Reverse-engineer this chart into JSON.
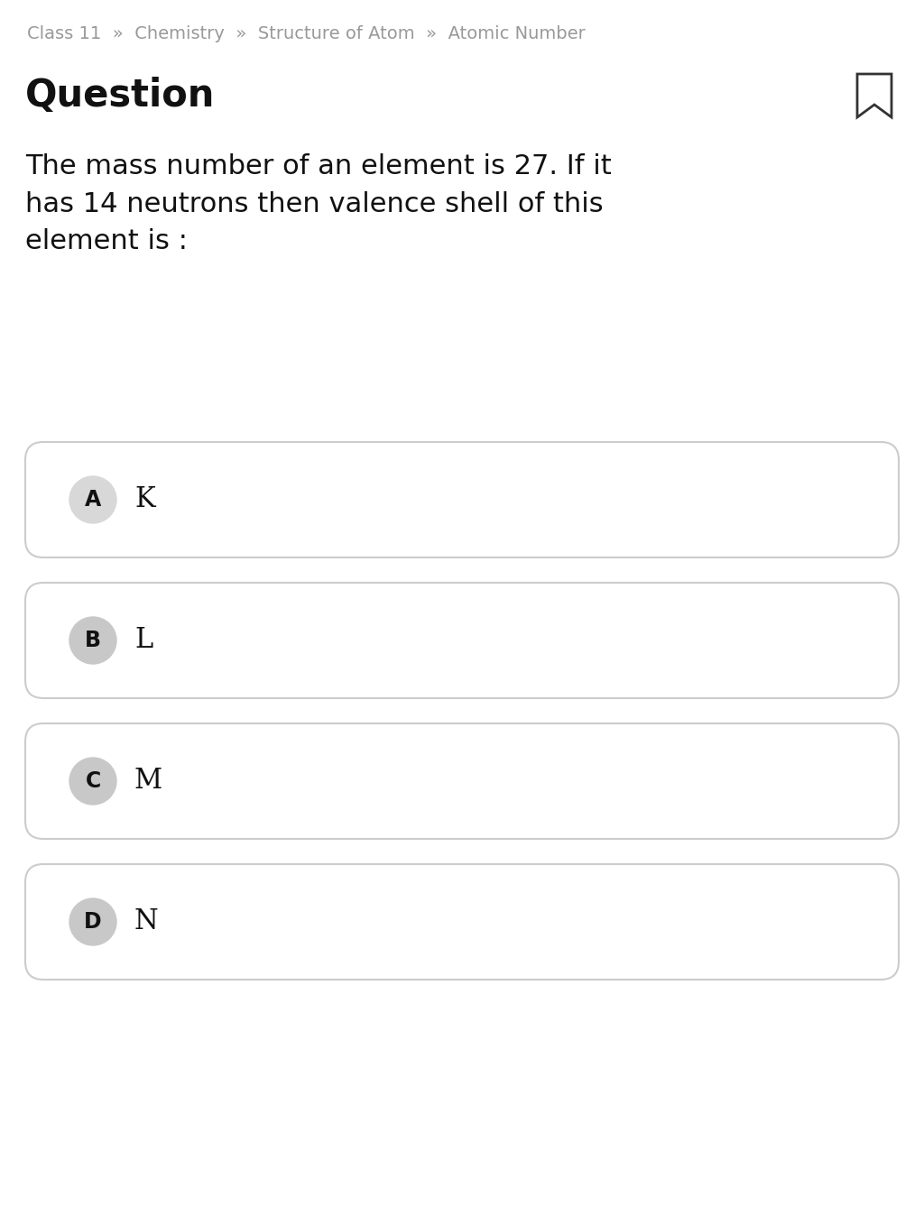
{
  "breadcrumb": "Class 11  »  Chemistry  »  Structure of Atom  »  Atomic Number",
  "section_title": "Question",
  "question_text": "The mass number of an element is 27. If it\nhas 14 neutrons then valence shell of this\nelement is :",
  "options": [
    {
      "label": "A",
      "text": "K"
    },
    {
      "label": "B",
      "text": "L"
    },
    {
      "label": "C",
      "text": "M"
    },
    {
      "label": "D",
      "text": "N"
    }
  ],
  "bg_color": "#ffffff",
  "breadcrumb_color": "#999999",
  "title_color": "#111111",
  "question_color": "#111111",
  "option_box_bg": "#ffffff",
  "option_box_border": "#cccccc",
  "option_circle_colors": [
    "#d8d8d8",
    "#c8c8c8",
    "#c8c8c8",
    "#c8c8c8"
  ],
  "option_label_color": "#111111",
  "option_text_color": "#111111",
  "breadcrumb_fontsize": 14,
  "title_fontsize": 30,
  "question_fontsize": 22,
  "option_fontsize": 22,
  "option_label_fontsize": 17,
  "fig_width": 10.24,
  "fig_height": 13.37,
  "dpi": 100
}
